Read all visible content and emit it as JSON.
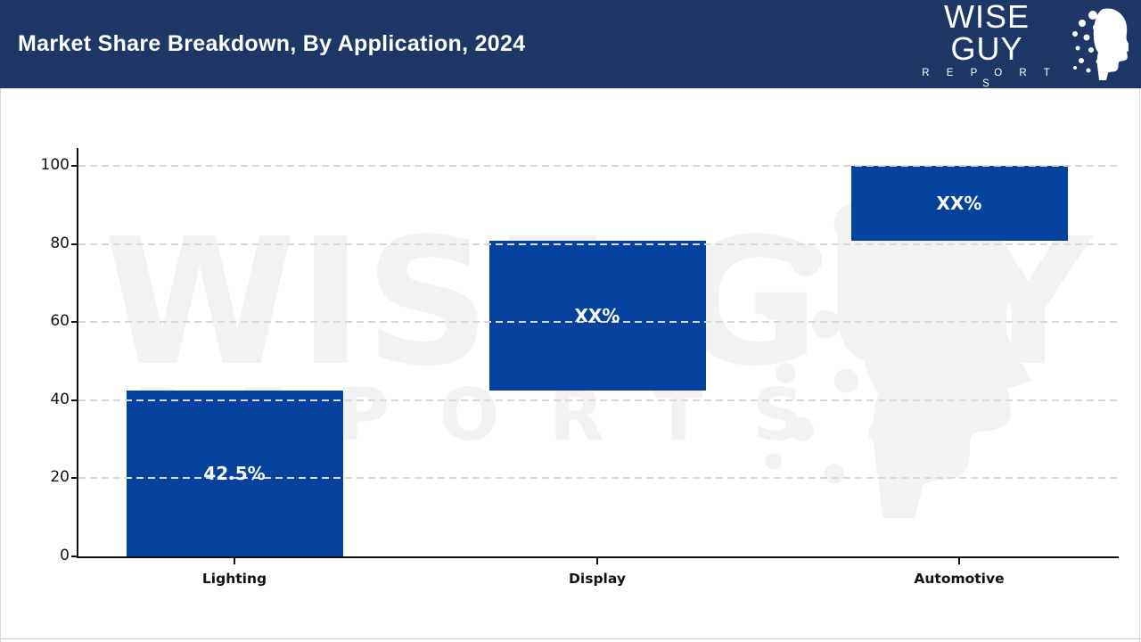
{
  "header": {
    "title": "Market Share Breakdown, By Application, 2024",
    "logo": {
      "line1": "WISE GUY",
      "line2": "R E P O R T S"
    }
  },
  "watermark": {
    "line1": "WISE GUY",
    "line2": "R E P O R T S"
  },
  "chart_data": {
    "type": "bar",
    "subtype": "floating-waterfall-segments",
    "title": "Market Share Breakdown, By Application, 2024",
    "categories": [
      "Lighting",
      "Display",
      "Automotive"
    ],
    "segments": [
      {
        "category": "Lighting",
        "start": 0,
        "end": 42.5,
        "label": "42.5%"
      },
      {
        "category": "Display",
        "start": 42.5,
        "end": 80.7,
        "label": "XX%"
      },
      {
        "category": "Automotive",
        "start": 80.7,
        "end": 100,
        "label": "XX%"
      }
    ],
    "xlabel": "",
    "ylabel": "",
    "ylim": [
      0,
      100
    ],
    "yticks": [
      0,
      20,
      40,
      60,
      80,
      100
    ],
    "grid": "horizontal-dashed",
    "legend": "none",
    "bar_color": "#05429e",
    "bar_label_color": "#ffffff",
    "grid_color": "#d8d8d8",
    "axis_color": "#111111",
    "header_bg": "#1f3766",
    "watermark_color": "#f2f2f2"
  }
}
